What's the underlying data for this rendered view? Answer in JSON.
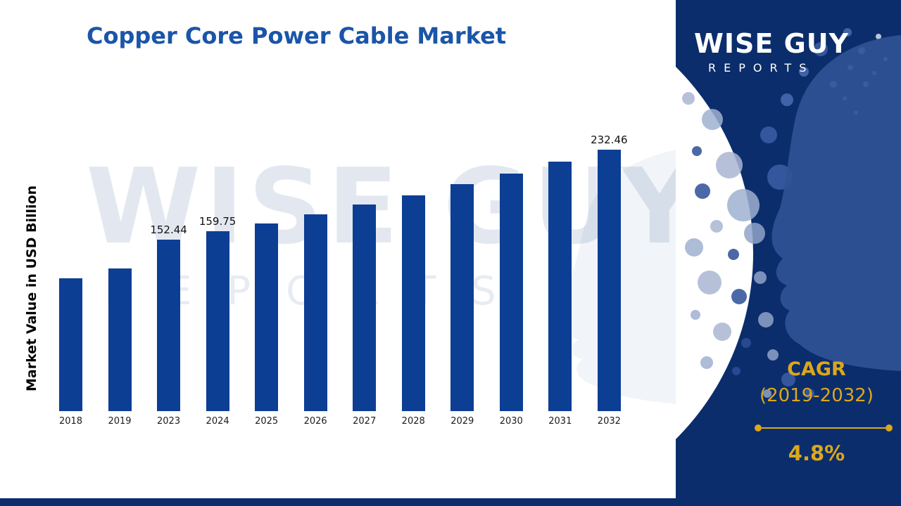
{
  "page": {
    "title": "Copper Core Power Cable Market"
  },
  "watermark": {
    "line1": "WISE GUY",
    "line2": "REPORTS"
  },
  "brand": {
    "logo_line1": "WISE GUY",
    "logo_line2": "REPORTS"
  },
  "cagr": {
    "label": "CAGR",
    "range": "(2019-2032)",
    "value": "4.8%"
  },
  "colors": {
    "bar": "#0c3e94",
    "panel": "#0b2d6b",
    "title": "#1a55a8",
    "gold": "#dca71b",
    "face": "#2f5294"
  },
  "chart_data": {
    "type": "bar",
    "title": "Copper Core Power Cable Market",
    "xlabel": "",
    "ylabel": "Market Value in USD Billion",
    "categories": [
      "2018",
      "2019",
      "2023",
      "2024",
      "2025",
      "2026",
      "2027",
      "2028",
      "2029",
      "2030",
      "2031",
      "2032"
    ],
    "values": [
      118,
      127,
      152.44,
      159.75,
      167,
      175,
      184,
      192,
      202,
      211,
      222,
      232.46
    ],
    "data_labels": {
      "2023": "152.44",
      "2024": "159.75",
      "2032": "232.46"
    },
    "ylim": [
      0,
      250
    ],
    "grid": false,
    "legend": false
  }
}
